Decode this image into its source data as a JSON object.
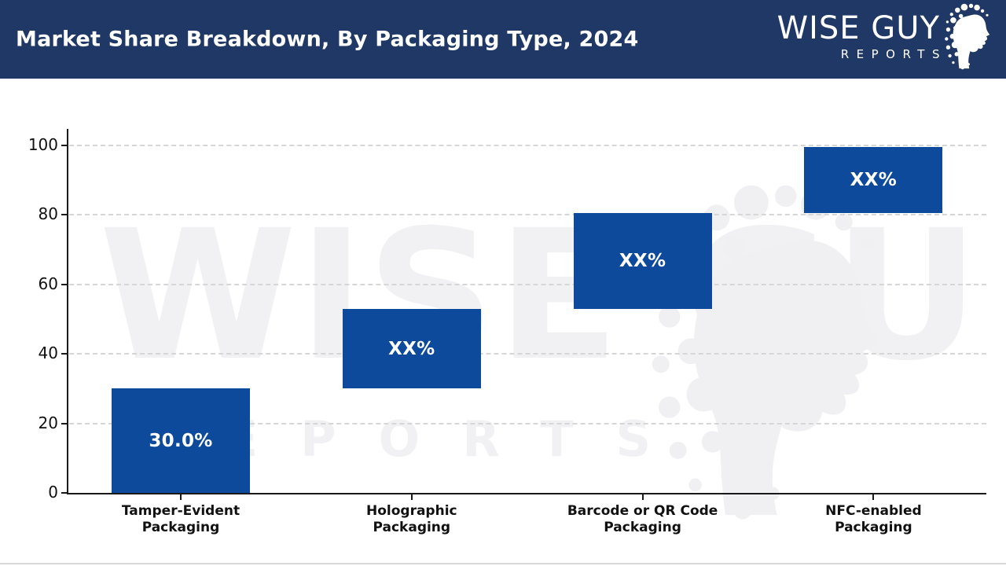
{
  "header": {
    "title": "Market Share Breakdown, By Packaging Type, 2024",
    "bg_color": "#1f3865",
    "text_color": "#ffffff",
    "logo": {
      "line1": "WISE GUY",
      "line2": "REPORTS",
      "icon": "dotted-head-profile-icon"
    }
  },
  "watermark": {
    "line1": "WISE GU",
    "line2": "REPORTS",
    "icon": "dotted-head-profile-icon",
    "color": "#f1f1f4"
  },
  "chart_data": {
    "type": "bar",
    "subtype": "waterfall",
    "title": "Market Share Breakdown, By Packaging Type, 2024",
    "xlabel": "",
    "ylabel": "",
    "ylim": [
      0,
      105
    ],
    "yticks": [
      0,
      20,
      40,
      60,
      80,
      100
    ],
    "grid": "horizontal dashed",
    "legend": "none",
    "bar_color": "#0d4a9c",
    "bar_label_color": "#ffffff",
    "categories": [
      "Tamper-Evident\nPackaging",
      "Holographic\nPackaging",
      "Barcode or QR Code\nPackaging",
      "NFC-enabled\nPackaging"
    ],
    "segments": [
      {
        "label": "30.0%",
        "start": 0,
        "end": 30
      },
      {
        "label": "XX%",
        "start": 30,
        "end": 53
      },
      {
        "label": "XX%",
        "start": 53,
        "end": 80.5
      },
      {
        "label": "XX%",
        "start": 80.5,
        "end": 99.5
      }
    ]
  }
}
